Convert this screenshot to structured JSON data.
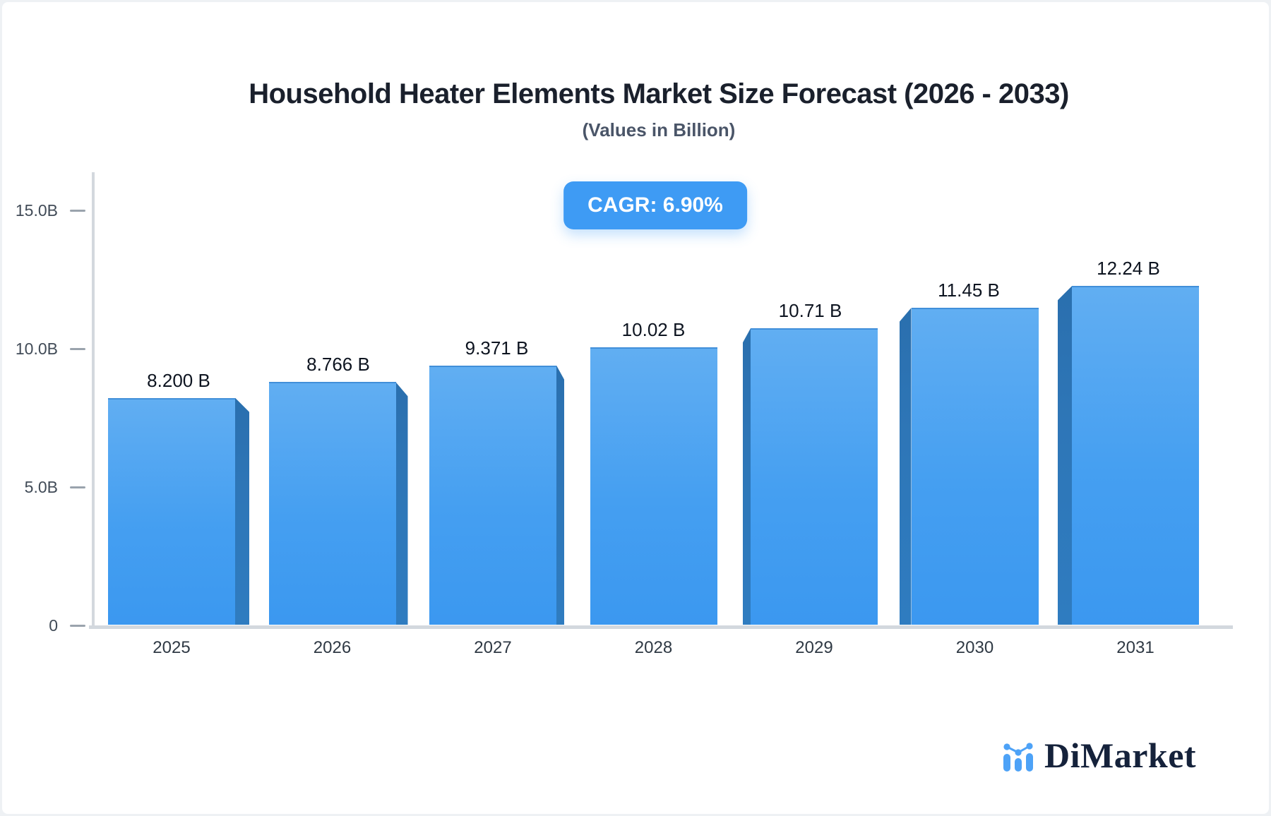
{
  "page": {
    "background_color": "#eef1f4",
    "card_background_color": "#ffffff"
  },
  "badge": {
    "label": "CAGR: 6.90%",
    "background_color": "#3e9bf4",
    "text_color": "#ffffff"
  },
  "brand": {
    "name": "DiMarket",
    "icon": "bar-chart-logo-icon",
    "icon_color": "#4da2f7",
    "text_color": "#15223b"
  },
  "chart_data": {
    "type": "bar",
    "title": "Household Heater Elements Market Size Forecast (2026 - 2033)",
    "subtitle": "(Values in Billion)",
    "categories": [
      "2025",
      "2026",
      "2027",
      "2028",
      "2029",
      "2030",
      "2031"
    ],
    "values": [
      8.2,
      8.766,
      9.371,
      10.02,
      10.71,
      11.45,
      12.24
    ],
    "bar_labels": [
      "8.200 B",
      "8.766 B",
      "9.371 B",
      "10.02 B",
      "10.71 B",
      "11.45 B",
      "12.24 B"
    ],
    "yticks": [
      {
        "value": 15,
        "label": "15.0B"
      },
      {
        "value": 10,
        "label": "10.0B"
      },
      {
        "value": 5,
        "label": "5.0B"
      },
      {
        "value": 0,
        "label": "0"
      }
    ],
    "ylim": [
      0,
      15
    ],
    "xlabel": "",
    "ylabel": "",
    "grid": false,
    "legend": null,
    "bar_style_3d": true,
    "colors": {
      "bar_face_top": "#61aef2",
      "bar_face_bottom": "#3b98f0",
      "bar_side": "#2e76b7",
      "bar_top_edge": "#418fd9",
      "axis_line": "#d3d8de",
      "tick_dash": "#9aa3ad"
    }
  }
}
